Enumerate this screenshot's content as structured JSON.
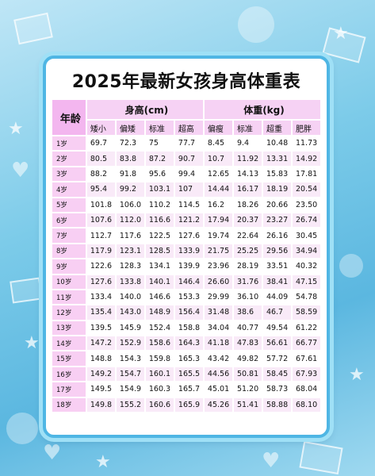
{
  "title": "2025年最新女孩身高体重表",
  "headers": {
    "age": "年龄",
    "height_group": "身高(cm)",
    "weight_group": "体重(kg)",
    "height_cols": [
      "矮小",
      "偏矮",
      "标准",
      "超高"
    ],
    "weight_cols": [
      "偏瘦",
      "标准",
      "超重",
      "肥胖"
    ]
  },
  "rows": [
    {
      "age": "1岁",
      "h": [
        "69.7",
        "72.3",
        "75",
        "77.7"
      ],
      "w": [
        "8.45",
        "9.4",
        "10.48",
        "11.73"
      ]
    },
    {
      "age": "2岁",
      "h": [
        "80.5",
        "83.8",
        "87.2",
        "90.7"
      ],
      "w": [
        "10.7",
        "11.92",
        "13.31",
        "14.92"
      ]
    },
    {
      "age": "3岁",
      "h": [
        "88.2",
        "91.8",
        "95.6",
        "99.4"
      ],
      "w": [
        "12.65",
        "14.13",
        "15.83",
        "17.81"
      ]
    },
    {
      "age": "4岁",
      "h": [
        "95.4",
        "99.2",
        "103.1",
        "107"
      ],
      "w": [
        "14.44",
        "16.17",
        "18.19",
        "20.54"
      ]
    },
    {
      "age": "5岁",
      "h": [
        "101.8",
        "106.0",
        "110.2",
        "114.5"
      ],
      "w": [
        "16.2",
        "18.26",
        "20.66",
        "23.50"
      ]
    },
    {
      "age": "6岁",
      "h": [
        "107.6",
        "112.0",
        "116.6",
        "121.2"
      ],
      "w": [
        "17.94",
        "20.37",
        "23.27",
        "26.74"
      ]
    },
    {
      "age": "7岁",
      "h": [
        "112.7",
        "117.6",
        "122.5",
        "127.6"
      ],
      "w": [
        "19.74",
        "22.64",
        "26.16",
        "30.45"
      ]
    },
    {
      "age": "8岁",
      "h": [
        "117.9",
        "123.1",
        "128.5",
        "133.9"
      ],
      "w": [
        "21.75",
        "25.25",
        "29.56",
        "34.94"
      ]
    },
    {
      "age": "9岁",
      "h": [
        "122.6",
        "128.3",
        "134.1",
        "139.9"
      ],
      "w": [
        "23.96",
        "28.19",
        "33.51",
        "40.32"
      ]
    },
    {
      "age": "10岁",
      "h": [
        "127.6",
        "133.8",
        "140.1",
        "146.4"
      ],
      "w": [
        "26.60",
        "31.76",
        "38.41",
        "47.15"
      ]
    },
    {
      "age": "11岁",
      "h": [
        "133.4",
        "140.0",
        "146.6",
        "153.3"
      ],
      "w": [
        "29.99",
        "36.10",
        "44.09",
        "54.78"
      ]
    },
    {
      "age": "12岁",
      "h": [
        "135.4",
        "143.0",
        "148.9",
        "156.4"
      ],
      "w": [
        "31.48",
        "38.6",
        "46.7",
        "58.59"
      ]
    },
    {
      "age": "13岁",
      "h": [
        "139.5",
        "145.9",
        "152.4",
        "158.8"
      ],
      "w": [
        "34.04",
        "40.77",
        "49.54",
        "61.22"
      ]
    },
    {
      "age": "14岁",
      "h": [
        "147.2",
        "152.9",
        "158.6",
        "164.3"
      ],
      "w": [
        "41.18",
        "47.83",
        "56.61",
        "66.77"
      ]
    },
    {
      "age": "15岁",
      "h": [
        "148.8",
        "154.3",
        "159.8",
        "165.3"
      ],
      "w": [
        "43.42",
        "49.82",
        "57.72",
        "67.61"
      ]
    },
    {
      "age": "16岁",
      "h": [
        "149.2",
        "154.7",
        "160.1",
        "165.5"
      ],
      "w": [
        "44.56",
        "50.81",
        "58.45",
        "67.93"
      ]
    },
    {
      "age": "17岁",
      "h": [
        "149.5",
        "154.9",
        "160.3",
        "165.7"
      ],
      "w": [
        "45.01",
        "51.20",
        "58.73",
        "68.04"
      ]
    },
    {
      "age": "18岁",
      "h": [
        "149.8",
        "155.2",
        "160.6",
        "165.9"
      ],
      "w": [
        "45.26",
        "51.41",
        "58.88",
        "68.10"
      ]
    }
  ]
}
